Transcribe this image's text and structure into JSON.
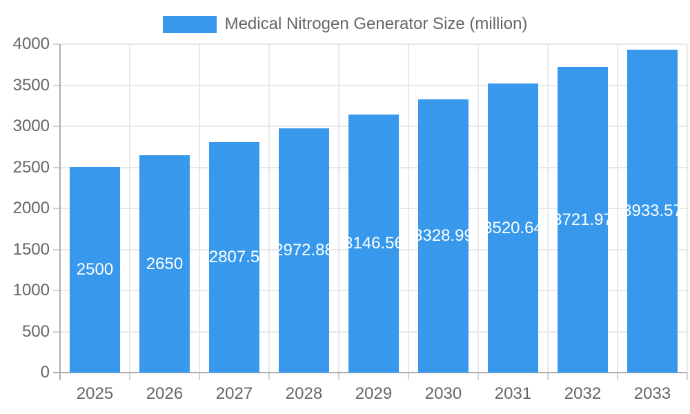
{
  "chart_data": {
    "type": "bar",
    "legend": "Medical Nitrogen Generator Size (million)",
    "legend_position": "top",
    "categories": [
      "2025",
      "2026",
      "2027",
      "2028",
      "2029",
      "2030",
      "2031",
      "2032",
      "2033"
    ],
    "values": [
      2500,
      2650,
      2807.5,
      2972.88,
      3146.56,
      3328.99,
      3520.64,
      3721.97,
      3933.57
    ],
    "value_labels": [
      "2500",
      "2650",
      "2807.5",
      "2972.88",
      "3146.56",
      "3328.99",
      "3520.64",
      "3721.97",
      "3933.57"
    ],
    "ylim": [
      0,
      4000
    ],
    "yticks": [
      "0",
      "500",
      "1000",
      "1500",
      "2000",
      "2500",
      "3000",
      "3500",
      "4000"
    ],
    "grid": true,
    "colors": {
      "bar": "#3899EC",
      "bar_label": "#FFFFFF",
      "axis_text": "#666666",
      "gridline": "#E8E8E8",
      "axis_border": "#ADADAD",
      "tick": "#D2D2D2",
      "background": "#FFFFFF"
    }
  }
}
